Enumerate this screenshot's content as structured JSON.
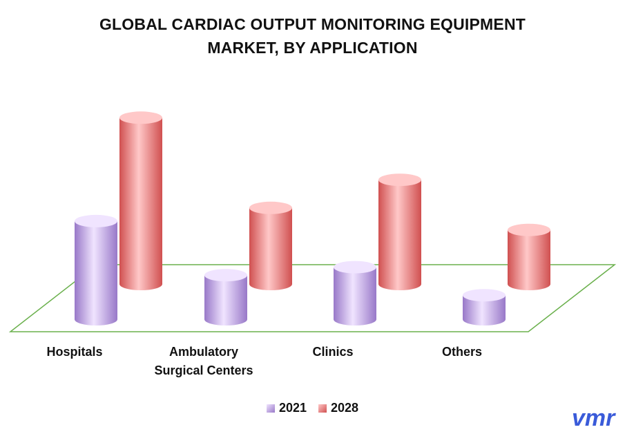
{
  "chart_data": {
    "type": "bar",
    "title": [
      "GLOBAL CARDIAC OUTPUT MONITORING EQUIPMENT",
      "MARKET, BY APPLICATION"
    ],
    "categories": [
      [
        "Hospitals"
      ],
      [
        "Ambulatory",
        "Surgical Centers"
      ],
      [
        "Clinics"
      ],
      [
        "Others"
      ]
    ],
    "series": [
      {
        "name": "2021",
        "values": [
          4.9,
          2.2,
          2.6,
          1.2
        ]
      },
      {
        "name": "2028",
        "values": [
          8.3,
          3.8,
          5.2,
          2.7
        ]
      }
    ],
    "ylim": [
      0,
      10
    ],
    "grid": false,
    "legend_position": "bottom-center"
  },
  "colors": {
    "s2021": "#c9a6f0",
    "s2021_dark": "#9878c8",
    "s2021_light": "#f0e4ff",
    "s2028": "#f07878",
    "s2028_dark": "#d05050",
    "s2028_light": "#ffc8c8",
    "floor": "#6ab04c",
    "logo": "#3a5bd9"
  },
  "logo_text": "vmr"
}
